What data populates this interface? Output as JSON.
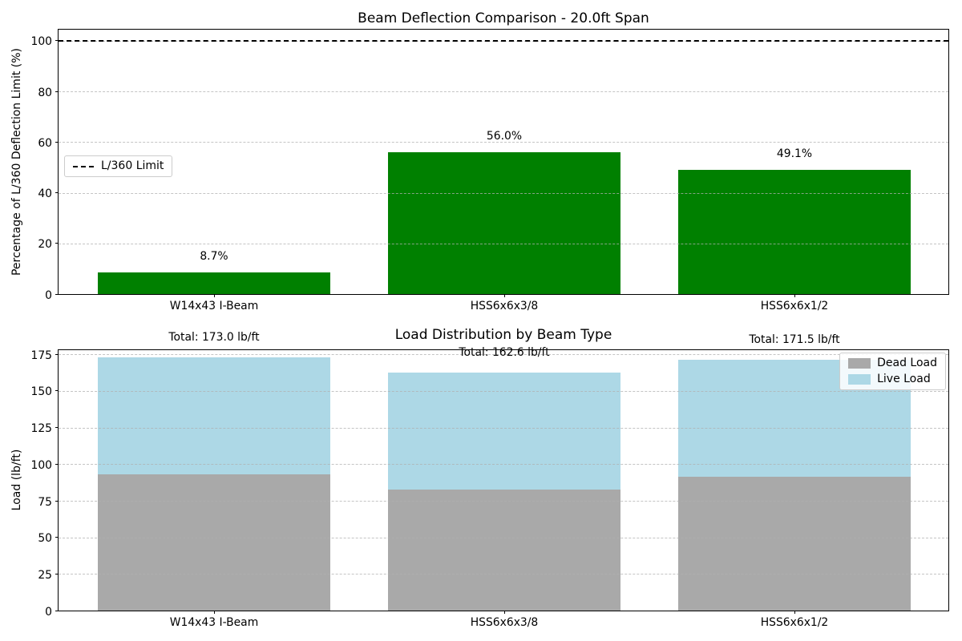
{
  "figure": {
    "background": "#ffffff"
  },
  "chart_data": [
    {
      "type": "bar",
      "title": "Beam Deflection Comparison - 20.0ft Span",
      "ylabel": "Percentage of L/360 Deflection Limit (%)",
      "xlabel": "",
      "categories": [
        "W14x43 I-Beam",
        "HSS6x6x3/8",
        "HSS6x6x1/2"
      ],
      "values": [
        8.7,
        56.0,
        49.1
      ],
      "bar_labels": [
        "8.7%",
        "56.0%",
        "49.1%"
      ],
      "bar_color": "#008000",
      "ylim": [
        0,
        105
      ],
      "yticks": [
        0,
        20,
        40,
        60,
        80,
        100
      ],
      "grid": "dashed-horizontal",
      "grid_color": "rgba(176,176,176,0.75)",
      "reference_line": {
        "value": 100,
        "color": "#000000",
        "style": "dashed",
        "label": "L/360 Limit"
      },
      "legend": {
        "position": "center-left",
        "items": [
          {
            "label": "L/360 Limit",
            "swatch": "dashed-line",
            "color": "#000000"
          }
        ]
      }
    },
    {
      "type": "stacked-bar",
      "title": "Load Distribution by Beam Type",
      "ylabel": "Load (lb/ft)",
      "xlabel": "",
      "categories": [
        "W14x43 I-Beam",
        "HSS6x6x3/8",
        "HSS6x6x1/2"
      ],
      "series": [
        {
          "name": "Dead Load",
          "color": "#a9a9a9",
          "values": [
            93.0,
            82.6,
            91.5
          ]
        },
        {
          "name": "Live Load",
          "color": "#add8e6",
          "values": [
            80.0,
            80.0,
            80.0
          ]
        }
      ],
      "totals": [
        173.0,
        162.6,
        171.5
      ],
      "total_labels": [
        "Total: 173.0 lb/ft",
        "Total: 162.6 lb/ft",
        "Total: 171.5 lb/ft"
      ],
      "ylim": [
        0,
        179
      ],
      "yticks": [
        0,
        25,
        50,
        75,
        100,
        125,
        150,
        175
      ],
      "grid": "dashed-horizontal",
      "grid_color": "rgba(176,176,176,0.75)",
      "legend": {
        "position": "top-right",
        "items": [
          {
            "label": "Dead Load",
            "swatch": "patch",
            "color": "#a9a9a9"
          },
          {
            "label": "Live Load",
            "swatch": "patch",
            "color": "#add8e6"
          }
        ]
      }
    }
  ]
}
